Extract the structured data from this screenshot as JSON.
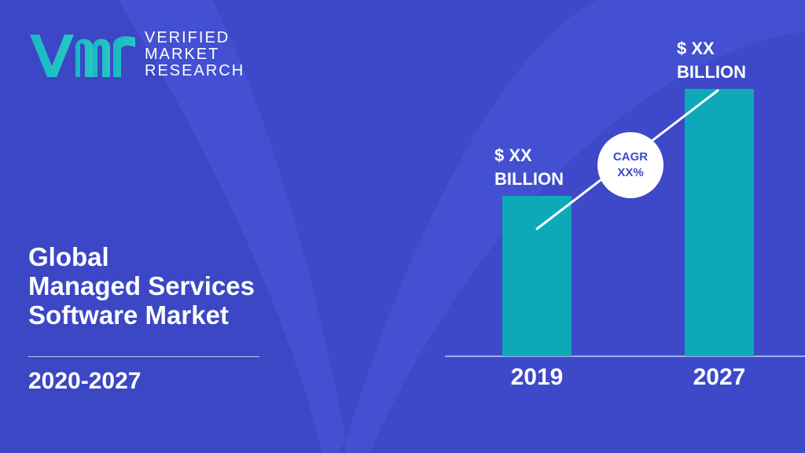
{
  "brand": {
    "line1": "VERIFIED",
    "line2": "MARKET",
    "line3": "RESEARCH"
  },
  "title": {
    "line1": "Global",
    "line2": "Managed Services",
    "line3": "Software Market"
  },
  "period": "2020-2027",
  "cagr": {
    "line1": "CAGR",
    "line2": "XX%"
  },
  "colors": {
    "background": "#3d49c9",
    "bar": "#0ea9b8",
    "text": "#ffffff"
  },
  "chart_data": {
    "type": "bar",
    "categories": [
      "2019",
      "2027"
    ],
    "values": [
      null,
      null
    ],
    "relative_heights": [
      0.6,
      1.0
    ],
    "data_labels": [
      {
        "line1": "$ XX",
        "line2": "BILLION"
      },
      {
        "line1": "$ XX",
        "line2": "BILLION"
      }
    ],
    "title": "",
    "xlabel": "",
    "ylabel": "",
    "grid": false
  }
}
